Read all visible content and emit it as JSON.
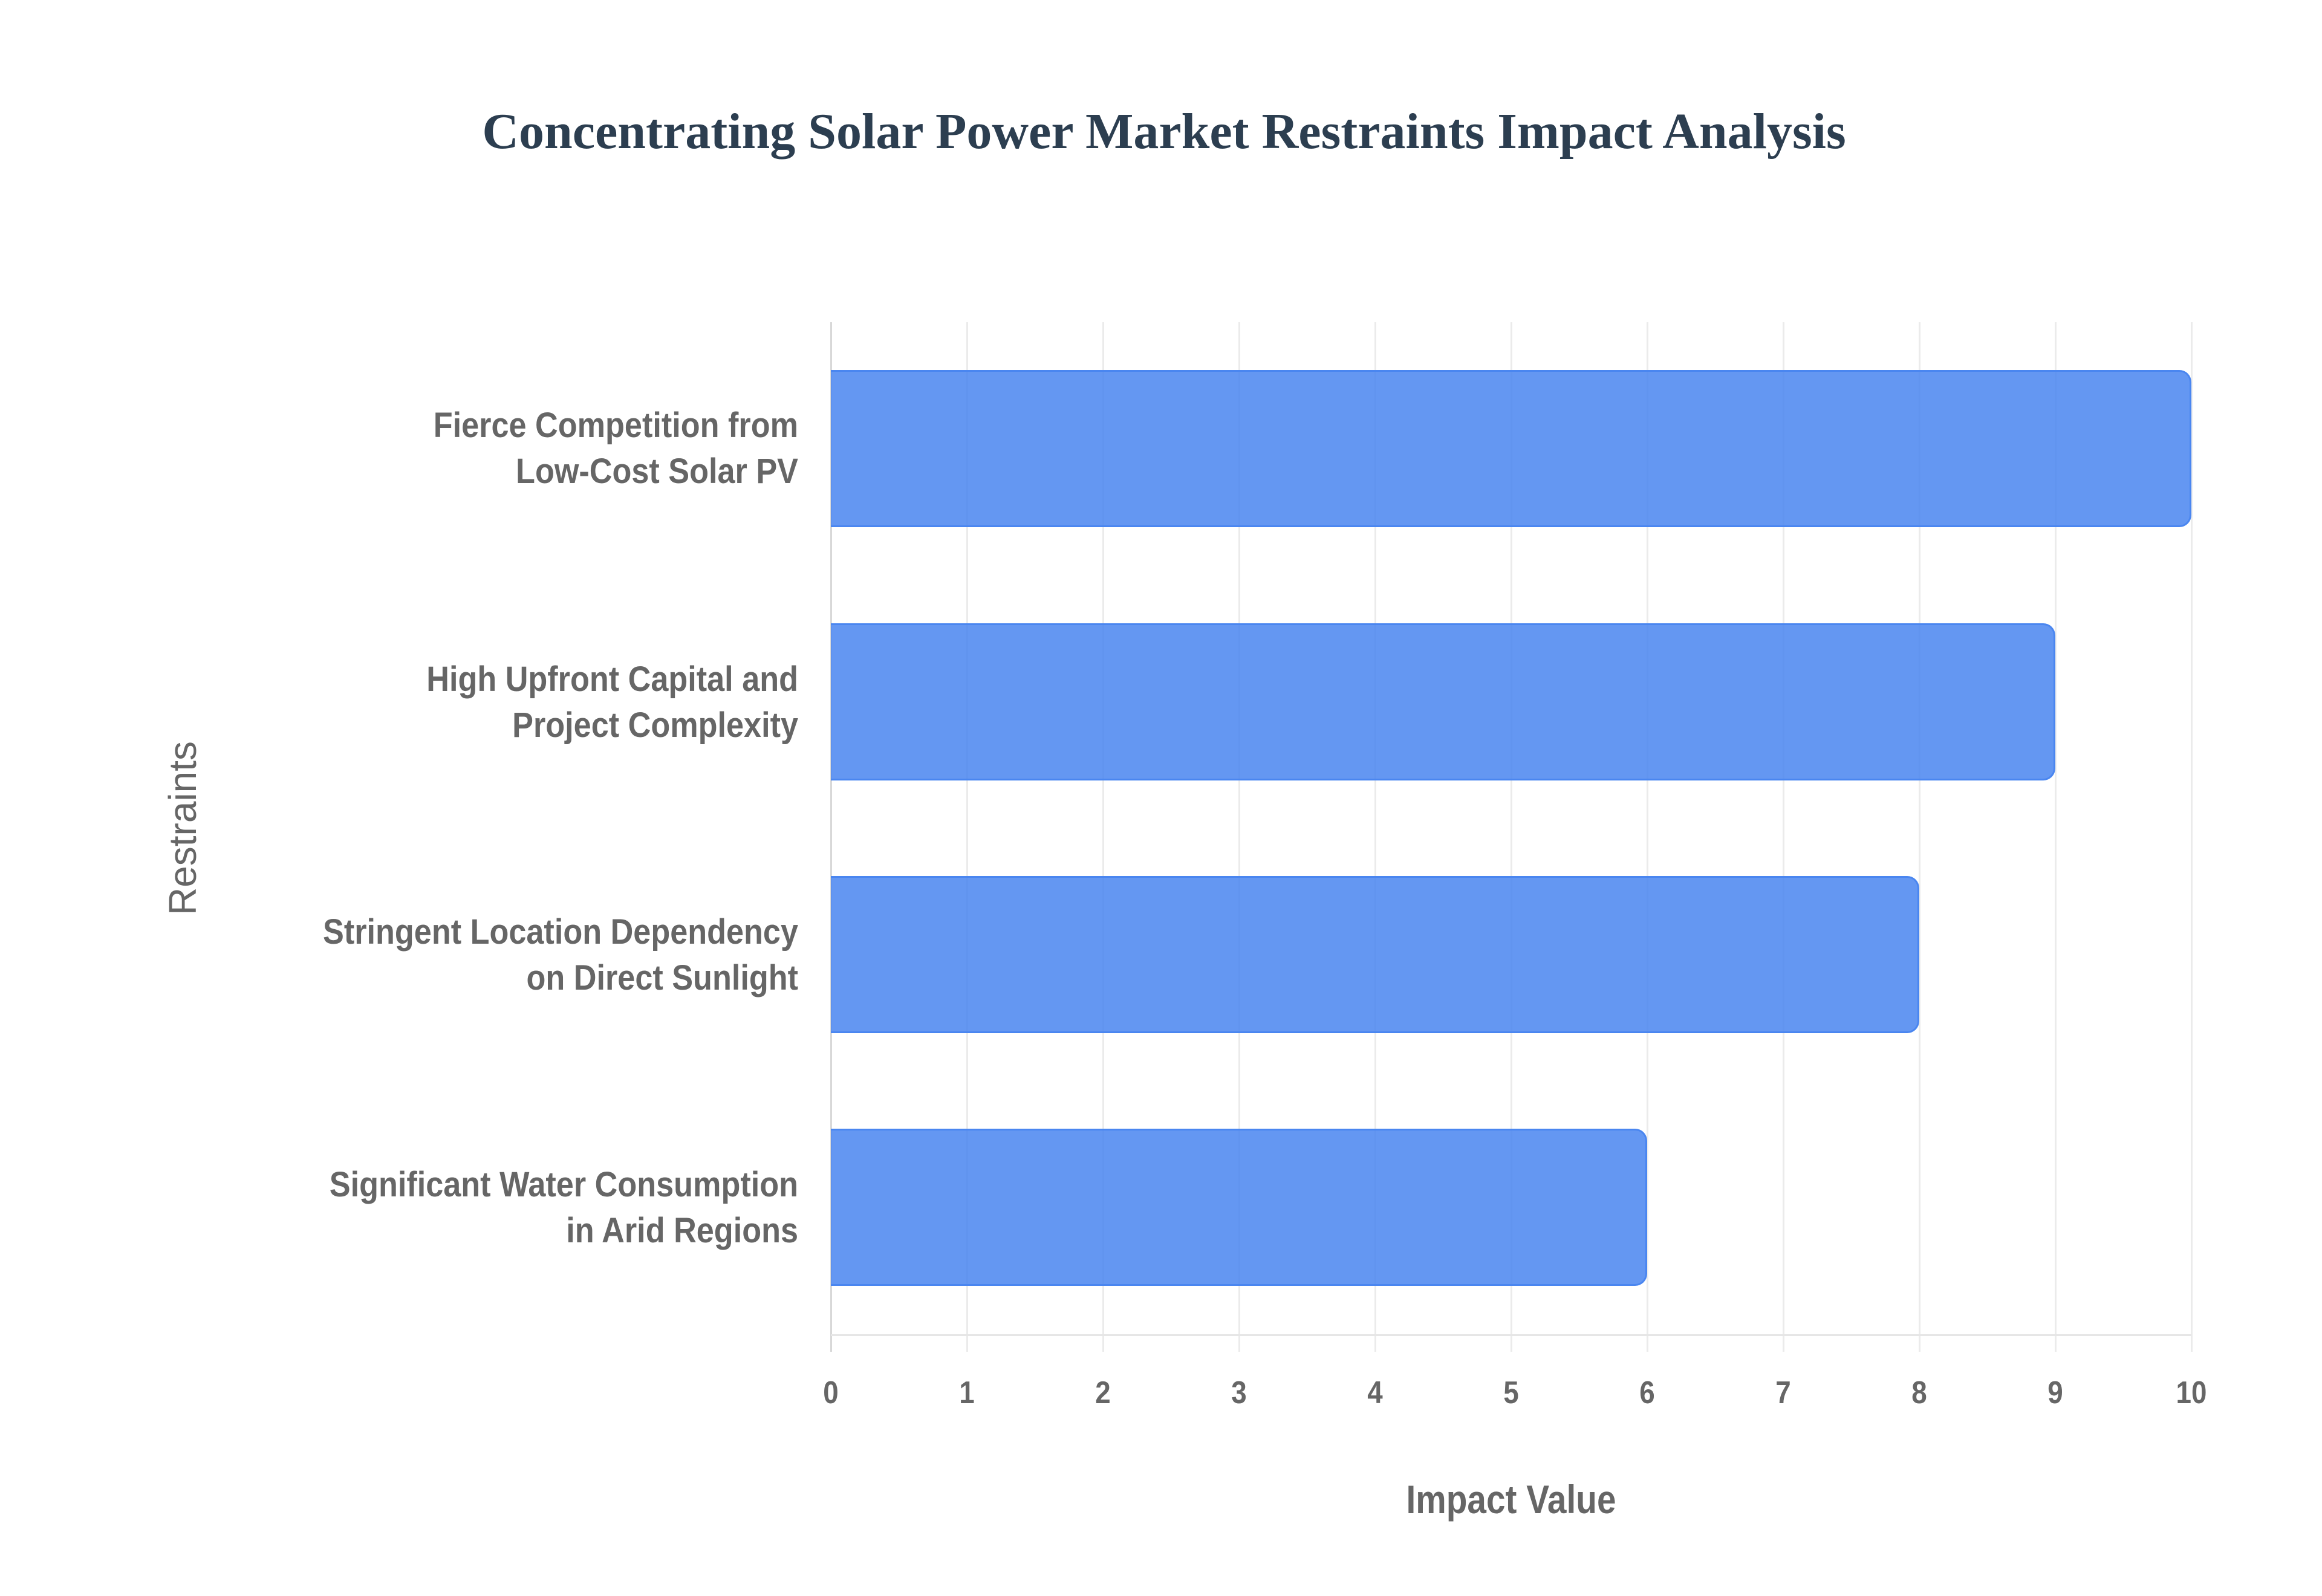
{
  "chart_data": {
    "type": "bar",
    "orientation": "horizontal",
    "title": "Concentrating Solar Power Market Restraints Impact Analysis",
    "xlabel": "Impact Value",
    "ylabel": "Restraints",
    "xlim": [
      0,
      10
    ],
    "x_ticks": [
      0,
      1,
      2,
      3,
      4,
      5,
      6,
      7,
      8,
      9,
      10
    ],
    "grid": true,
    "legend": null,
    "categories": [
      "Fierce Competition from Low-Cost Solar PV",
      "High Upfront Capital and Project Complexity",
      "Stringent Location Dependency on Direct Sunlight",
      "Significant Water Consumption in Arid Regions"
    ],
    "category_lines": [
      [
        "Fierce Competition from",
        "Low-Cost Solar PV"
      ],
      [
        "High Upfront Capital and",
        "Project Complexity"
      ],
      [
        "Stringent Location Dependency",
        "on Direct Sunlight"
      ],
      [
        "Significant Water Consumption",
        "in Arid Regions"
      ]
    ],
    "values": [
      10,
      9,
      8,
      6
    ],
    "series": [
      {
        "name": "Impact Value",
        "values": [
          10,
          9,
          8,
          6
        ],
        "color": "#4a86f0"
      }
    ]
  },
  "colors": {
    "bar_fill": "#6199f5",
    "bar_stroke": "#4a86f0",
    "title": "#2c3e50",
    "axis_text": "#666666",
    "grid": "#ebebeb"
  },
  "tick_labels": [
    "0",
    "1",
    "2",
    "3",
    "4",
    "5",
    "6",
    "7",
    "8",
    "9",
    "10"
  ]
}
